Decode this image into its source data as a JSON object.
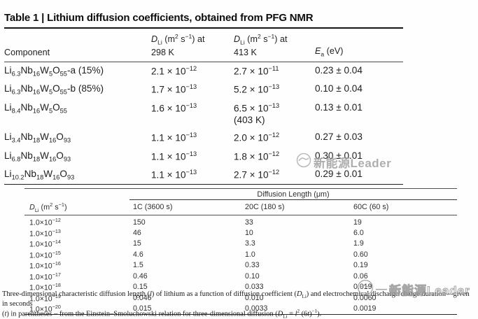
{
  "title": "Table 1 | Lithium diffusion coefficients, obtained from PFG NMR",
  "table1": {
    "headers": {
      "component": "Component",
      "d298": "*D*~Li~ (m^2^ s^−1^) at\n298 K",
      "d413": "*D*~Li~ (m^2^ s^−1^) at\n413 K",
      "ea": "*E*~a~ (eV)"
    },
    "rows": [
      {
        "component": "Li~6.3~Nb~16~W~5~O~55~-a (15%)",
        "d298": "2.1 × 10^−12^",
        "d413": "2.7 × 10^−11^",
        "ea": "0.23 ± 0.04"
      },
      {
        "component": "Li~6.3~Nb~16~W~5~O~55~-b (85%)",
        "d298": "1.7 × 10^−13^",
        "d413": "5.2 × 10^−13^",
        "ea": "0.10 ± 0.04"
      },
      {
        "component": "Li~8.4~Nb~16~W~5~O~55~",
        "d298": "1.6 × 10^−13^",
        "d413": "6.5 × 10^−13^\n(403 K)",
        "ea": "0.13 ± 0.01"
      },
      {
        "component": "Li~3.4~Nb~18~W~16~O~93~",
        "d298": "1.1 × 10^−13^",
        "d413": "2.0 × 10^−12^",
        "ea": "0.27 ± 0.03"
      },
      {
        "component": "Li~6.8~Nb~18~W~16~O~93~",
        "d298": "1.1 × 10^−13^",
        "d413": "1.8 × 10^−12^",
        "ea": "0.30 ± 0.01"
      },
      {
        "component": "Li~10.2~Nb~18~W~16~O~93~",
        "d298": "1.1 × 10^−13^",
        "d413": "2.7 × 10^−12^",
        "ea": "0.29 ± 0.01"
      }
    ]
  },
  "table2": {
    "span_header": "Diffusion Length (μm)",
    "col_headers": {
      "dli": "*D*~Li~ (m^2^ s^−1^)",
      "c1": "1C (3600 s)",
      "c20": "20C (180 s)",
      "c60": "60C (60 s)"
    },
    "rows": [
      [
        "1.0×10^−12^",
        "150",
        "33",
        "19"
      ],
      [
        "1.0×10^−13^",
        "46",
        "10",
        "6.0"
      ],
      [
        "1.0×10^−14^",
        "15",
        "3.3",
        "1.9"
      ],
      [
        "1.0×10^−15^",
        "4.6",
        "1.0",
        "0.60"
      ],
      [
        "1.0×10^−16^",
        "1.5",
        "0.33",
        "0.19"
      ],
      [
        "1.0×10^−17^",
        "0.46",
        "0.10",
        "0.06"
      ],
      [
        "1.0×10^−18^",
        "0.15",
        "0.033",
        "0.019"
      ],
      [
        "1.0×10^−19^",
        "0.046",
        "0.010",
        "0.0060"
      ],
      [
        "1.0×10^−20^",
        "0.015",
        "0.0033",
        "0.0019"
      ]
    ]
  },
  "footnote": {
    "line1": "Three-dimensional characteristic diffusion length (*l*) of lithium as a function of diffusion coefficient (*D*~Li~) and electrochemical discharge/charge duration—given in seconds",
    "line2": "(*t*) in parentheses – from the Einstein–Smoluchowski relation for three-dimensional diffusion (*D*~Li~ = *l*^2^ (6*t*)^−1^)."
  },
  "watermark": {
    "text": "新能源Leader",
    "dash": "—",
    "color": "#9b9b9b"
  }
}
